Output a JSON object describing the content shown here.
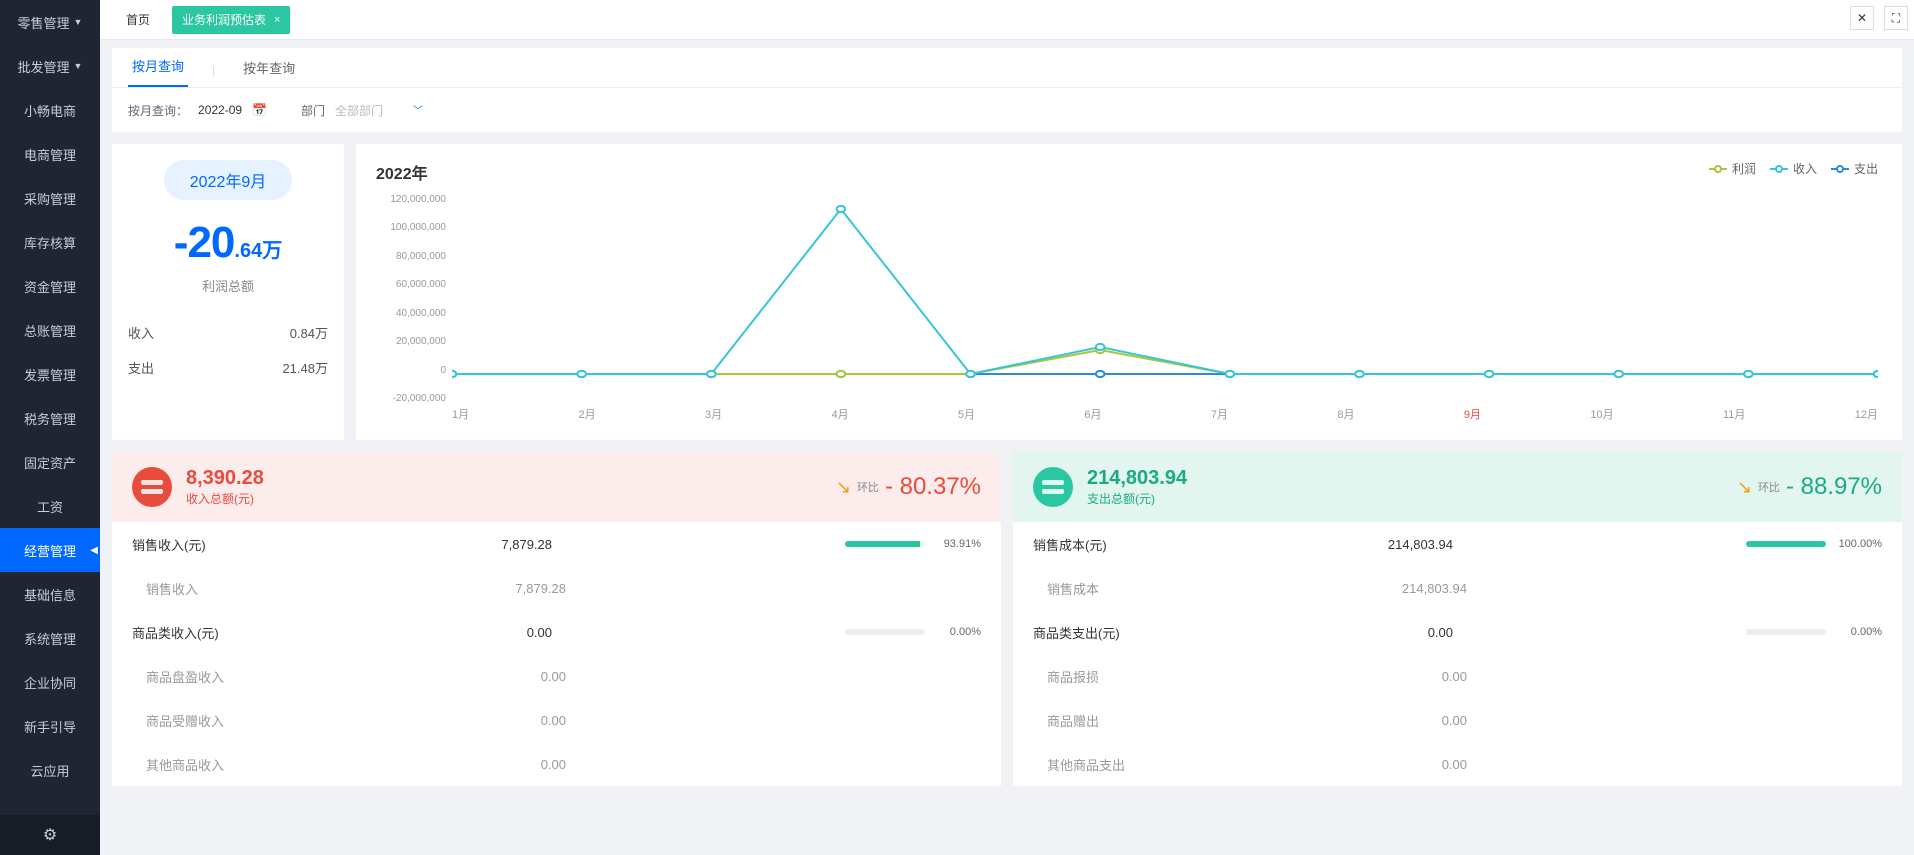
{
  "sidebar": {
    "items": [
      {
        "label": "零售管理",
        "hasChev": true
      },
      {
        "label": "批发管理",
        "hasChev": true
      },
      {
        "label": "小畅电商",
        "hasChev": false
      },
      {
        "label": "电商管理",
        "hasChev": false
      },
      {
        "label": "采购管理",
        "hasChev": false
      },
      {
        "label": "库存核算",
        "hasChev": false
      },
      {
        "label": "资金管理",
        "hasChev": false
      },
      {
        "label": "总账管理",
        "hasChev": false
      },
      {
        "label": "发票管理",
        "hasChev": false
      },
      {
        "label": "税务管理",
        "hasChev": false
      },
      {
        "label": "固定资产",
        "hasChev": false
      },
      {
        "label": "工资",
        "hasChev": false
      },
      {
        "label": "经营管理",
        "hasChev": false,
        "active": true
      },
      {
        "label": "基础信息",
        "hasChev": false
      },
      {
        "label": "系统管理",
        "hasChev": false
      },
      {
        "label": "企业协同",
        "hasChev": false
      },
      {
        "label": "新手引导",
        "hasChev": false
      },
      {
        "label": "云应用",
        "hasChev": false
      }
    ]
  },
  "tabsBar": {
    "home": "首页",
    "active": "业务利润预估表"
  },
  "subtabs": [
    {
      "label": "按月查询",
      "active": true
    },
    {
      "label": "按年查询",
      "active": false
    }
  ],
  "filters": {
    "monthLabel": "按月查询：",
    "monthValue": "2022-09",
    "deptLabel": "部门",
    "deptPlaceholder": "全部部门"
  },
  "summary": {
    "monthChip": "2022年9月",
    "bigPrefix": "-20",
    "bigSuffix": ".64万",
    "bigLabel": "利润总额",
    "incomeLabel": "收入",
    "incomeVal": "0.84万",
    "expenseLabel": "支出",
    "expenseVal": "21.48万"
  },
  "chart": {
    "title": "2022年",
    "legend": [
      {
        "label": "利润",
        "color": "#a8c73a"
      },
      {
        "label": "收入",
        "color": "#36c5d9"
      },
      {
        "label": "支出",
        "color": "#2b8bd9"
      }
    ],
    "yTicks": [
      "120,000,000",
      "100,000,000",
      "80,000,000",
      "60,000,000",
      "40,000,000",
      "20,000,000",
      "0",
      "-20,000,000"
    ],
    "ymin": -20000000,
    "ymax": 120000000,
    "months": [
      "1月",
      "2月",
      "3月",
      "4月",
      "5月",
      "6月",
      "7月",
      "8月",
      "9月",
      "10月",
      "11月",
      "12月"
    ],
    "currentMonth": "9月",
    "series": {
      "profit": [
        0,
        0,
        0,
        0,
        0,
        16000000,
        0,
        0,
        0,
        0,
        0,
        0
      ],
      "income": [
        0,
        0,
        0,
        110000000,
        0,
        18000000,
        0,
        0,
        0,
        0,
        0,
        0
      ],
      "expense": [
        0,
        0,
        0,
        0,
        0,
        0,
        0,
        0,
        0,
        0,
        0,
        0
      ]
    },
    "colors": {
      "profit": "#a8c73a",
      "income": "#36c5d9",
      "expense": "#2b8bd9"
    },
    "markerRadius": 3
  },
  "incomePanel": {
    "type": "red",
    "total": "8,390.28",
    "totalLabel": "收入总额(元)",
    "deltaLabel": "环比",
    "deltaValue": "- 80.37%",
    "rows": [
      {
        "name": "销售收入(元)",
        "value": "7,879.28",
        "pct": 93.91,
        "pctText": "93.91%",
        "sub": false,
        "showBar": true
      },
      {
        "name": "销售收入",
        "value": "7,879.28",
        "sub": true,
        "showBar": false
      },
      {
        "name": "商品类收入(元)",
        "value": "0.00",
        "pct": 0,
        "pctText": "0.00%",
        "sub": false,
        "showBar": true
      },
      {
        "name": "商品盘盈收入",
        "value": "0.00",
        "sub": true,
        "showBar": false
      },
      {
        "name": "商品受赠收入",
        "value": "0.00",
        "sub": true,
        "showBar": false
      },
      {
        "name": "其他商品收入",
        "value": "0.00",
        "sub": true,
        "showBar": false
      }
    ]
  },
  "expensePanel": {
    "type": "green",
    "total": "214,803.94",
    "totalLabel": "支出总额(元)",
    "deltaLabel": "环比",
    "deltaValue": "- 88.97%",
    "rows": [
      {
        "name": "销售成本(元)",
        "value": "214,803.94",
        "pct": 100,
        "pctText": "100.00%",
        "sub": false,
        "showBar": true
      },
      {
        "name": "销售成本",
        "value": "214,803.94",
        "sub": true,
        "showBar": false
      },
      {
        "name": "商品类支出(元)",
        "value": "0.00",
        "pct": 0,
        "pctText": "0.00%",
        "sub": false,
        "showBar": true
      },
      {
        "name": "商品报损",
        "value": "0.00",
        "sub": true,
        "showBar": false
      },
      {
        "name": "商品赠出",
        "value": "0.00",
        "sub": true,
        "showBar": false
      },
      {
        "name": "其他商品支出",
        "value": "0.00",
        "sub": true,
        "showBar": false
      }
    ]
  }
}
